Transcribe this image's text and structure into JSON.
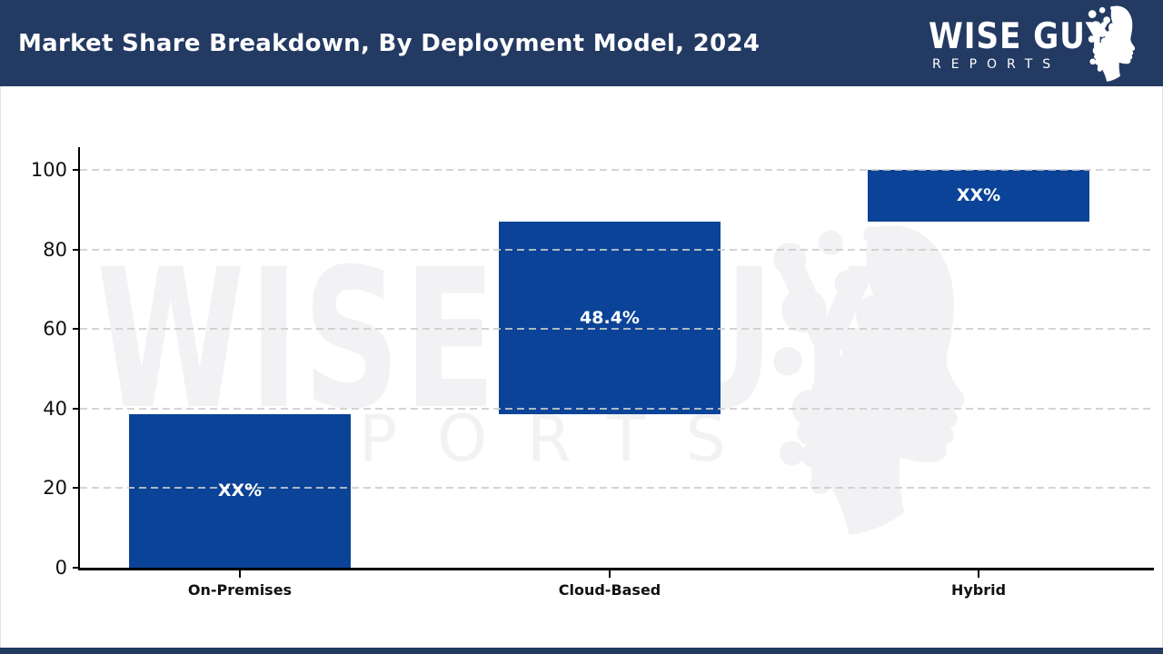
{
  "header": {
    "title": "Market Share Breakdown, By Deployment Model, 2024",
    "logo": {
      "line1": "WISE GUY",
      "line2": "REPORTS"
    }
  },
  "watermark": {
    "line1": "WISE GUY",
    "line2": "REPORTS"
  },
  "colors": {
    "header_bg": "#233A63",
    "footer_bg": "#233A63",
    "bar_blue": "#0A4397",
    "grid_gray": "#CCCCCC",
    "watermark_gray": "#F2F2F5",
    "axis_black": "#000000",
    "bar_label_white": "#FFFFFF"
  },
  "chart_data": {
    "type": "bar",
    "subtype": "floating-waterfall",
    "title": "Market Share Breakdown, By Deployment Model, 2024",
    "categories": [
      "On-Premises",
      "Cloud-Based",
      "Hybrid"
    ],
    "bars": [
      {
        "category": "On-Premises",
        "start": 0,
        "end": 38.6,
        "label": "XX%"
      },
      {
        "category": "Cloud-Based",
        "start": 38.6,
        "end": 87.0,
        "label": "48.4%"
      },
      {
        "category": "Hybrid",
        "start": 87.0,
        "end": 100,
        "label": "XX%"
      }
    ],
    "xlabel": "",
    "ylabel": "",
    "yticks": [
      0,
      20,
      40,
      60,
      80,
      100
    ],
    "ylim": [
      0,
      106
    ],
    "grid": "horizontal-dashed",
    "grid_above_bars": true,
    "legend_position": "none",
    "bar_color": "#0A4397"
  }
}
